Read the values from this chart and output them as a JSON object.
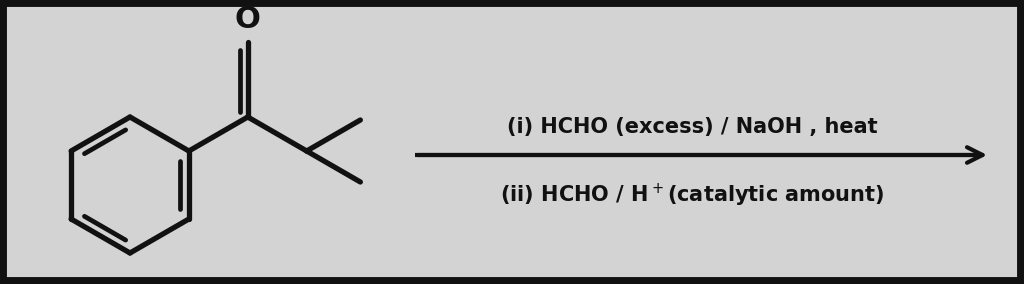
{
  "background_color": "#d3d3d3",
  "border_color": "#111111",
  "border_linewidth": 10,
  "line1": "(i) HCHO (excess) / NaOH , heat",
  "line2_part1": "(ii) HCHO / H",
  "line2_superscript": "+",
  "line2_part2": "(catalytic amount)",
  "text_color": "#111111",
  "text_fontsize": 15,
  "text_fontweight": "bold",
  "molecule_color": "#111111",
  "lw": 3.8,
  "figw": 10.24,
  "figh": 2.84
}
